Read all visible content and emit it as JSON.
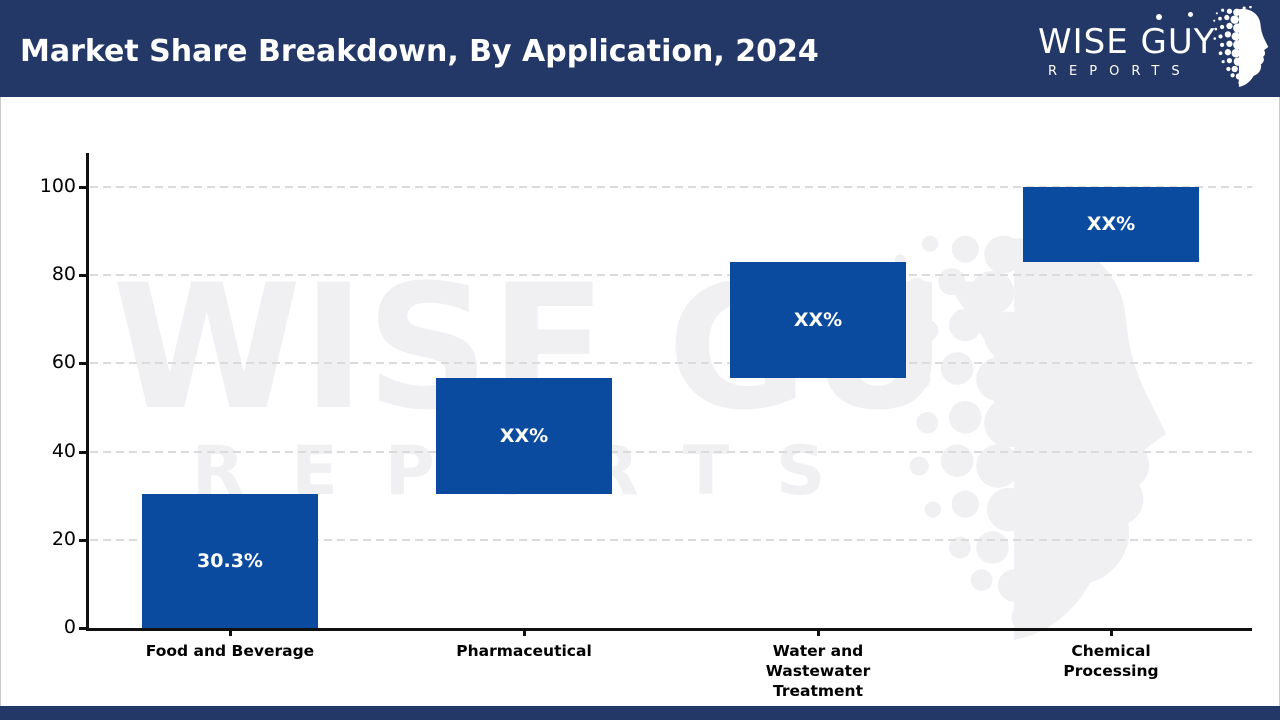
{
  "header": {
    "title": "Market Share Breakdown, By Application, 2024"
  },
  "logo": {
    "line1": "WISE GUY",
    "line2": "REPORTS"
  },
  "watermark": {
    "line1": "WISE GUY",
    "line2": "REPORTS"
  },
  "colors": {
    "header_bg": "#233866",
    "footer_bg": "#233866",
    "bar": "#0B4B9F",
    "bar_label": "#FFFFFF",
    "gridline": "#DBDBDB",
    "axis": "#111111",
    "watermark": "#F0F0F2",
    "title_text": "#FFFFFF"
  },
  "chart_data": {
    "type": "bar",
    "variant": "waterfall",
    "title": "Market Share Breakdown, By Application, 2024",
    "categories": [
      "Food and Beverage",
      "Pharmaceutical",
      "Water and Wastewater Treatment",
      "Chemical Processing"
    ],
    "category_label_lines": [
      [
        "Food and Beverage"
      ],
      [
        "Pharmaceutical"
      ],
      [
        "Water and",
        "Wastewater",
        "Treatment"
      ],
      [
        "Chemical",
        "Processing"
      ]
    ],
    "bars": [
      {
        "category": "Food and Beverage",
        "start": 0,
        "end": 30.3,
        "label": "30.3%"
      },
      {
        "category": "Pharmaceutical",
        "start": 30.3,
        "end": 56.6,
        "label": "XX%"
      },
      {
        "category": "Water and Wastewater Treatment",
        "start": 56.6,
        "end": 83.0,
        "label": "XX%"
      },
      {
        "category": "Chemical Processing",
        "start": 83.0,
        "end": 100.0,
        "label": "XX%"
      }
    ],
    "yticks": [
      0,
      20,
      40,
      60,
      80,
      100
    ],
    "ylim": [
      0,
      107
    ],
    "xlabel": "",
    "ylabel": "",
    "grid": "dashed-horizontal",
    "legend": false,
    "bar_color": "#0B4B9F"
  }
}
